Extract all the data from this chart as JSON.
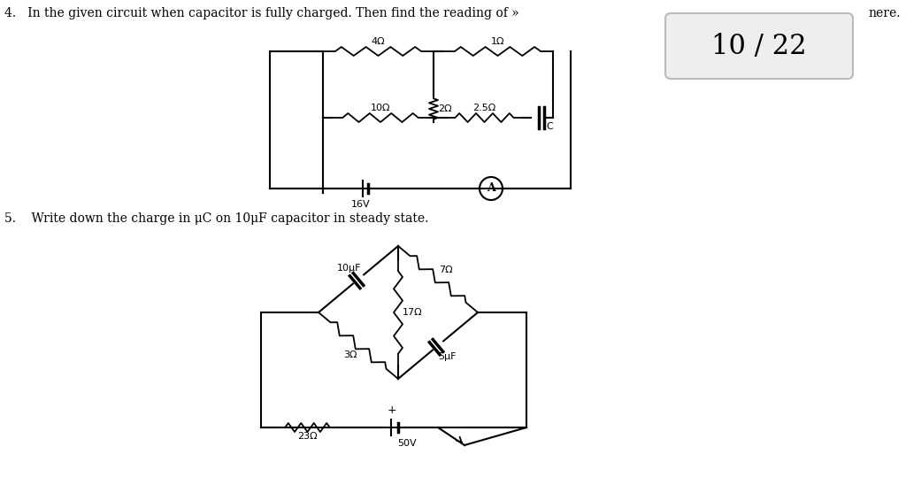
{
  "background_color": "#ffffff",
  "title_text": "4.   In the given circuit when capacitor is fully charged. Then find the reading of »",
  "title_right": "nere.",
  "score_text": "10 / 22",
  "q5_text": "5.    Write down the charge in μC on 10μF capacitor in steady state.",
  "fig_width": 10.24,
  "fig_height": 5.48,
  "dpi": 100
}
